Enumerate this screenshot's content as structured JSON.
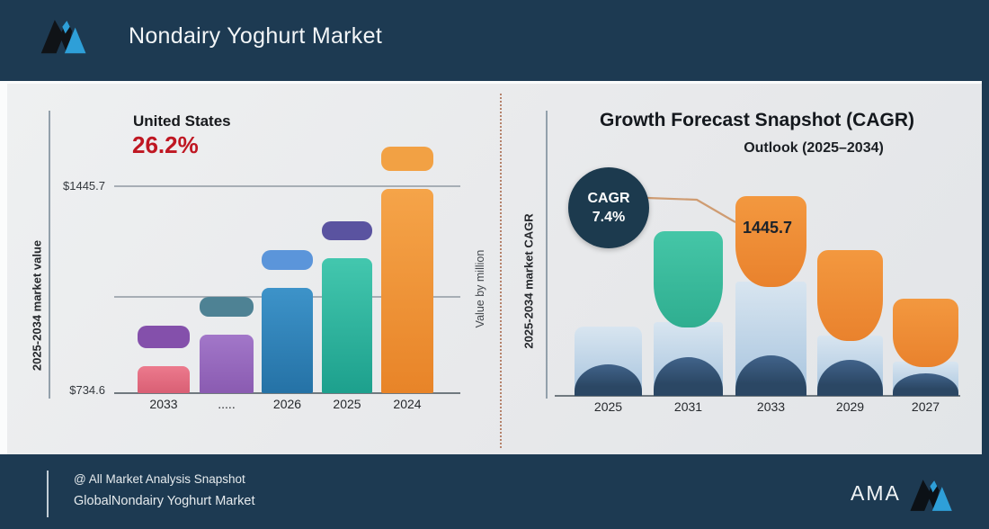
{
  "header": {
    "title": "Nondairy Yoghurt Market",
    "logo": "ama-mountain-logo"
  },
  "left_chart": {
    "region_label": "United States",
    "highlight_value": "26.2%",
    "y_axis_title": "2025-2034 market value",
    "y_tick_top": "$1445.7",
    "y_tick_bottom": "$734.6"
  },
  "middle": {
    "value_axis_note": "Value by million",
    "right_y_axis_title": "2025-2034 market CAGR"
  },
  "right_chart": {
    "title": "Growth Forecast Snapshot (CAGR)",
    "subtitle": "Outlook (2025–2034)",
    "cagr_label": "CAGR",
    "cagr_value": "7.4%",
    "bar_label": "1445.7"
  },
  "footer": {
    "line1": "@ All Market Analysis Snapshot",
    "line2": "GlobalNondairy Yoghurt Market",
    "brand": "AMA"
  },
  "chart_data": [
    {
      "type": "bar",
      "title": "United States 26.2%",
      "categories": [
        "2033",
        ".....",
        "2026",
        "2025",
        "2024"
      ],
      "values": [
        827,
        936,
        1096,
        1198,
        1437
      ],
      "values_note": "estimated from gridlines; axis labeled $734.6 (baseline) and $1445.7 (upper gridline)",
      "bar_colors": [
        "pink",
        "purple",
        "blue",
        "teal",
        "orange"
      ],
      "cap_colors": [
        "purple",
        "slate",
        "lightblue",
        "indigo",
        "orange"
      ],
      "ylabel": "2025-2034 market value",
      "yticks": [
        "$1445.7",
        "$734.6"
      ],
      "ylim": [
        734.6,
        1510
      ],
      "grid": true,
      "legend": false
    },
    {
      "type": "bar-stacked",
      "title": "Growth Forecast Snapshot (CAGR)",
      "subtitle": "Outlook (2025–2034)",
      "categories": [
        "2025",
        "2031",
        "2033",
        "2029",
        "2027"
      ],
      "series": [
        {
          "name": "base",
          "color": "navy",
          "values": [
            228,
            280,
            293,
            260,
            163
          ]
        },
        {
          "name": "mid",
          "color": "light",
          "values": [
            273,
            254,
            534,
            176,
            85
          ]
        },
        {
          "name": "top",
          "color": null,
          "values": [
            0,
            658,
            619,
            619,
            455
          ],
          "colors": [
            null,
            "teal",
            "orange",
            "orange",
            "orange"
          ]
        }
      ],
      "totals_estimated": [
        501,
        1192,
        1445.7,
        1055,
        703
      ],
      "annotations": [
        {
          "text": "CAGR 7.4%",
          "type": "circle-badge"
        },
        {
          "text": "1445.7",
          "target": "2033"
        }
      ],
      "ylabel": "2025-2034 market CAGR",
      "grid": false,
      "legend": false
    }
  ],
  "colors": {
    "header_bg": "#1d3a52",
    "panel_bg": "#e9eaec",
    "accent_red": "#bf1722",
    "axis_gray": "#93a0ab",
    "divider_tan": "#b5826b",
    "circle_navy": "#1c3a4e",
    "connector_tan": "#cf9c72",
    "logo_black": "#101317",
    "logo_blue": "#2e9fd8",
    "bar_palette": {
      "pink": [
        "#ec7a8d",
        "#d95f74"
      ],
      "purple": [
        "#a277c9",
        "#8a5bb1"
      ],
      "blue": [
        "#3d93c9",
        "#2572a6"
      ],
      "teal": [
        "#43c7ae",
        "#1da08d"
      ],
      "orange": [
        "#f5a449",
        "#e88428"
      ],
      "cap_purple": "#8450ab",
      "cap_slate": "#4e8294",
      "cap_lightblue": "#5b95da",
      "cap_indigo": "#5a53a0",
      "cap_orange": "#f2a144",
      "stack_light": [
        "#d8e5f0",
        "#a7c4de"
      ],
      "stack_navy": [
        "#41638a",
        "#2b4764"
      ],
      "stack_teal": [
        "#45c6a7",
        "#2fae90"
      ],
      "stack_orange": [
        "#f3983f",
        "#e9822d"
      ]
    }
  }
}
